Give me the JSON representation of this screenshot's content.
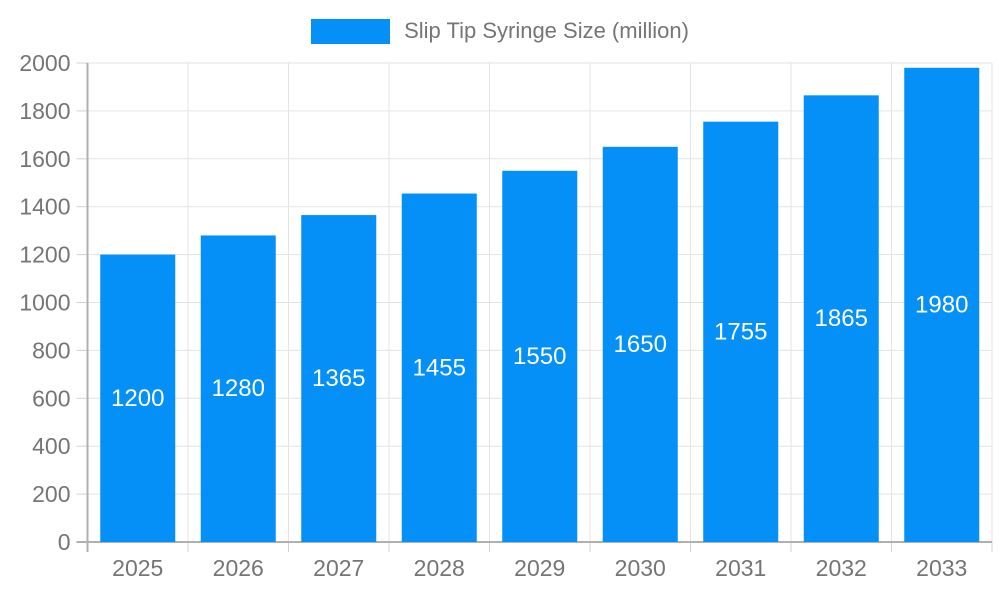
{
  "chart_data": {
    "type": "bar",
    "title": "",
    "legend_label": "Slip Tip Syringe Size (million)",
    "legend_position": "top-center",
    "categories": [
      "2025",
      "2026",
      "2027",
      "2028",
      "2029",
      "2030",
      "2031",
      "2032",
      "2033"
    ],
    "values": [
      1200,
      1280,
      1365,
      1455,
      1550,
      1650,
      1755,
      1865,
      1980
    ],
    "xlabel": "",
    "ylabel": "",
    "ylim": [
      0,
      2000
    ],
    "ytick_step": 200,
    "yticks": [
      0,
      200,
      400,
      600,
      800,
      1000,
      1200,
      1400,
      1600,
      1800,
      2000
    ],
    "grid": "horizontal and vertical gridlines on",
    "value_label_style": "white numbers centered inside bars",
    "colors": {
      "bar": "#0590f8",
      "grid": "#e3e3e3",
      "tick": "#d0d0d0",
      "axis": "#b0b0b0",
      "label_text": "#757575",
      "value_label": "#ffffff",
      "background": "#ffffff"
    }
  }
}
